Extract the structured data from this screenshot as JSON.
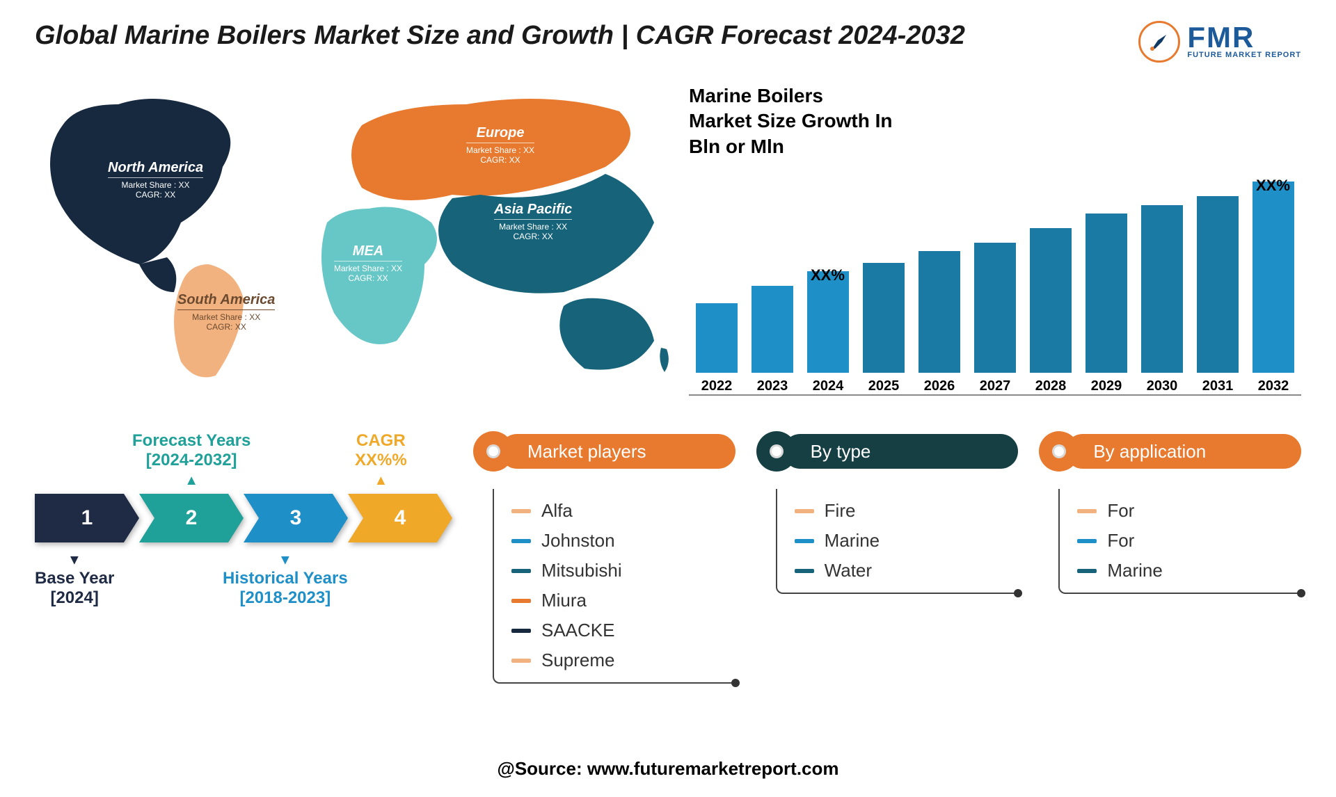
{
  "title": "Global Marine Boilers Market Size and Growth | CAGR Forecast 2024-2032",
  "logo": {
    "abbrev": "FMR",
    "subtitle": "FUTURE MARKET REPORT"
  },
  "map": {
    "regions": {
      "north_america": {
        "name": "North America",
        "share": "Market Share : XX",
        "cagr": "CAGR: XX",
        "color": "#17293f"
      },
      "south_america": {
        "name": "South America",
        "share": "Market Share : XX",
        "cagr": "CAGR: XX",
        "color": "#f2b280",
        "text_color": "#6b4a2f"
      },
      "europe": {
        "name": "Europe",
        "share": "Market Share : XX",
        "cagr": "CAGR: XX",
        "color": "#e87a2f"
      },
      "mea": {
        "name": "MEA",
        "share": "Market Share : XX",
        "cagr": "CAGR: XX",
        "color": "#67c7c7"
      },
      "asia_pacific": {
        "name": "Asia Pacific",
        "share": "Market Share : XX",
        "cagr": "CAGR: XX",
        "color": "#17647a"
      }
    }
  },
  "chart": {
    "title_line1": "Marine Boilers",
    "title_line2": "Market Size Growth In",
    "title_line3": "Bln or Mln",
    "type": "bar",
    "categories": [
      "2022",
      "2023",
      "2024",
      "2025",
      "2026",
      "2027",
      "2028",
      "2029",
      "2030",
      "2031",
      "2032"
    ],
    "values": [
      120,
      150,
      175,
      190,
      210,
      225,
      250,
      275,
      290,
      305,
      330
    ],
    "bar_colors": [
      "#1f8fc8",
      "#1f8fc8",
      "#1f8fc8",
      "#1b7aa3",
      "#1b7aa3",
      "#1b7aa3",
      "#1b7aa3",
      "#1b7aa3",
      "#1b7aa3",
      "#1b7aa3",
      "#1f8fc8"
    ],
    "max": 360,
    "label_fontsize": 20,
    "annotations": [
      {
        "index": 2,
        "text": "XX%"
      },
      {
        "index": 10,
        "text": "XX%"
      }
    ]
  },
  "timeline": {
    "forecast_label": "Forecast Years",
    "forecast_range": "[2024-2032]",
    "forecast_color": "#1fa098",
    "cagr_label": "CAGR",
    "cagr_value": "XX%%",
    "cagr_color": "#f0a828",
    "base_label": "Base Year",
    "base_range": "[2024]",
    "base_color": "#1f2a44",
    "hist_label": "Historical Years",
    "hist_range": "[2018-2023]",
    "hist_color": "#1f8fc8",
    "steps": [
      {
        "n": "1",
        "color": "#1f2a44"
      },
      {
        "n": "2",
        "color": "#1fa098"
      },
      {
        "n": "3",
        "color": "#1f8fc8"
      },
      {
        "n": "4",
        "color": "#f0a828"
      }
    ]
  },
  "sections": {
    "players": {
      "pill_label": "Market players",
      "pill_color": "#e87a2f",
      "items": [
        {
          "label": "Alfa",
          "color": "#f2b280"
        },
        {
          "label": "Johnston",
          "color": "#1f8fc8"
        },
        {
          "label": "Mitsubishi",
          "color": "#17647a"
        },
        {
          "label": "Miura",
          "color": "#e87a2f"
        },
        {
          "label": "SAACKE",
          "color": "#17293f"
        },
        {
          "label": "Supreme",
          "color": "#f2b280"
        }
      ]
    },
    "type": {
      "pill_label": "By type",
      "pill_color": "#163f44",
      "items": [
        {
          "label": "Fire",
          "color": "#f2b280"
        },
        {
          "label": "Marine",
          "color": "#1f8fc8"
        },
        {
          "label": "Water",
          "color": "#17647a"
        }
      ]
    },
    "application": {
      "pill_label": "By application",
      "pill_color": "#e87a2f",
      "items": [
        {
          "label": "For",
          "color": "#f2b280"
        },
        {
          "label": "For",
          "color": "#1f8fc8"
        },
        {
          "label": "Marine",
          "color": "#17647a"
        }
      ]
    }
  },
  "source": "@Source: www.futuremarketreport.com"
}
